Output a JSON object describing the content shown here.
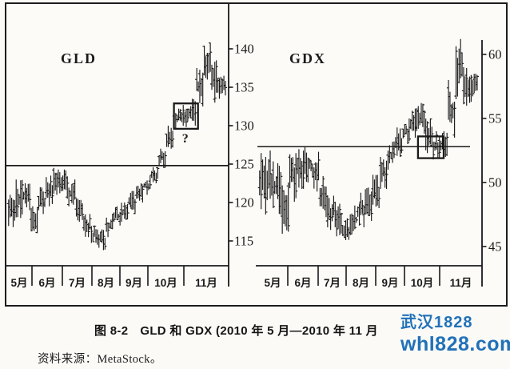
{
  "page": {
    "background": "#fbfaf7",
    "ink": "#1a1a1a"
  },
  "caption": {
    "number": "图 8-2",
    "title": "GLD 和 GDX (2010 年 5 月—2010 年 11 月"
  },
  "source": {
    "text": "资料来源：MetaStock。"
  },
  "watermark": {
    "line1": "武汉1828",
    "line2": "whl828.com",
    "color": "#2171b8"
  },
  "chart_data": [
    {
      "type": "ohlc-bar",
      "symbol": "GLD",
      "x_months": [
        "5月",
        "6月",
        "7月",
        "8月",
        "9月",
        "10月",
        "11月"
      ],
      "y_ticks": [
        140,
        135,
        130,
        125,
        120,
        115
      ],
      "ylim": [
        111.5,
        145.5
      ],
      "resistance_level": 124.8,
      "box": {
        "weeks": [
          22.05,
          25.25
        ],
        "price_range": [
          129.6,
          132.9
        ]
      },
      "box_annotation": "?",
      "weekly_hlc": [
        [
          121.0,
          116.8,
          120.0
        ],
        [
          123.0,
          118.0,
          122.5
        ],
        [
          122.5,
          119.0,
          119.5
        ],
        [
          119.5,
          116.0,
          118.8
        ],
        [
          122.0,
          118.5,
          121.5
        ],
        [
          123.5,
          119.5,
          120.5
        ],
        [
          124.5,
          121.0,
          122.0
        ],
        [
          124.3,
          120.5,
          121.5
        ],
        [
          123.0,
          119.5,
          120.0
        ],
        [
          120.5,
          117.5,
          118.0
        ],
        [
          118.5,
          115.5,
          116.5
        ],
        [
          117.0,
          114.5,
          116.5
        ],
        [
          116.5,
          113.8,
          116.0
        ],
        [
          118.5,
          115.5,
          118.0
        ],
        [
          119.5,
          117.0,
          119.0
        ],
        [
          120.0,
          117.5,
          118.5
        ],
        [
          121.5,
          118.5,
          121.0
        ],
        [
          122.5,
          120.0,
          122.0
        ],
        [
          123.5,
          121.0,
          123.2
        ],
        [
          124.6,
          122.5,
          124.4
        ],
        [
          127.0,
          124.5,
          126.8
        ],
        [
          130.0,
          127.0,
          129.8
        ],
        [
          132.5,
          129.5,
          130.5
        ],
        [
          132.7,
          129.8,
          131.5
        ],
        [
          133.5,
          130.0,
          132.8
        ],
        [
          137.5,
          132.5,
          136.5
        ],
        [
          140.8,
          136.0,
          138.0
        ],
        [
          138.5,
          133.0,
          134.5
        ],
        [
          136.5,
          133.5,
          136.2
        ]
      ]
    },
    {
      "type": "ohlc-bar",
      "symbol": "GDX",
      "x_months": [
        "5月",
        "6月",
        "7月",
        "8月",
        "9月",
        "10月",
        "11月"
      ],
      "y_ticks": [
        60,
        55,
        50,
        45
      ],
      "ylim": [
        43.3,
        63.5
      ],
      "resistance_level": 52.8,
      "box": {
        "weeks": [
          21.05,
          24.45
        ],
        "price_range": [
          51.9,
          53.6
        ]
      },
      "box_annotation": null,
      "weekly_hlc": [
        [
          52.3,
          47.5,
          48.5
        ],
        [
          52.5,
          48.0,
          51.5
        ],
        [
          51.5,
          47.5,
          48.5
        ],
        [
          50.0,
          46.0,
          48.8
        ],
        [
          52.3,
          48.5,
          51.5
        ],
        [
          52.6,
          49.5,
          50.3
        ],
        [
          52.8,
          50.0,
          51.0
        ],
        [
          52.4,
          49.3,
          50.0
        ],
        [
          50.5,
          47.3,
          47.8
        ],
        [
          49.0,
          46.3,
          48.2
        ],
        [
          48.5,
          45.8,
          46.2
        ],
        [
          47.2,
          45.5,
          46.6
        ],
        [
          48.2,
          45.9,
          47.8
        ],
        [
          49.2,
          46.5,
          48.6
        ],
        [
          49.6,
          47.0,
          49.0
        ],
        [
          50.6,
          48.0,
          50.2
        ],
        [
          52.0,
          49.5,
          51.8
        ],
        [
          53.2,
          51.0,
          52.9
        ],
        [
          54.3,
          52.0,
          54.0
        ],
        [
          55.0,
          53.0,
          54.5
        ],
        [
          55.8,
          53.5,
          55.3
        ],
        [
          56.2,
          53.8,
          54.5
        ],
        [
          55.0,
          52.3,
          53.2
        ],
        [
          54.0,
          51.8,
          52.6
        ],
        [
          54.0,
          52.0,
          53.8
        ],
        [
          58.0,
          53.5,
          57.5
        ],
        [
          61.2,
          56.5,
          59.0
        ],
        [
          59.0,
          56.0,
          57.2
        ],
        [
          58.5,
          56.3,
          58.0
        ]
      ]
    }
  ]
}
